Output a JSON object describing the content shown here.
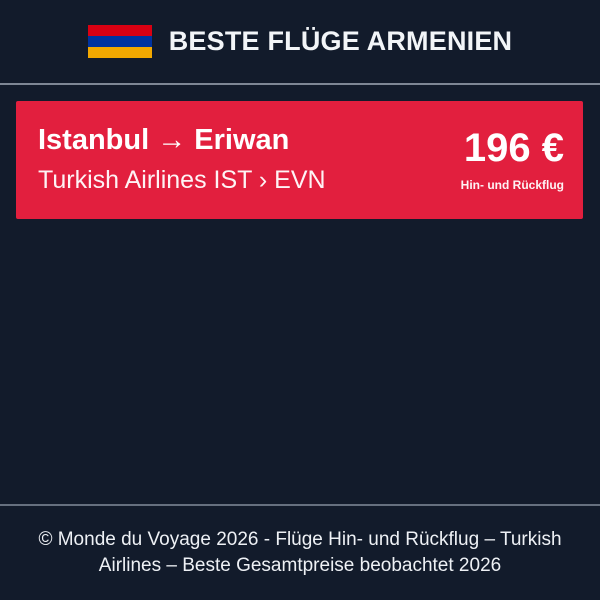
{
  "page": {
    "background": "#121b2b"
  },
  "header": {
    "title": "BESTE FLÜGE ARMENIEN",
    "flag": {
      "name": "armenia-flag",
      "colors": {
        "top": "#d90012",
        "middle": "#0033a0",
        "bottom": "#f2a800"
      }
    },
    "divider_color": "#7e8795"
  },
  "deal_card": {
    "bg": "#e21f3e",
    "route": "Istanbul → Eriwan",
    "airline_route": "Turkish Airlines IST › EVN",
    "price": "196 €",
    "price_note": "Hin- und Rückflug"
  },
  "footer": {
    "divider_color": "#66707f",
    "text": "© Monde du Voyage 2026 - Flüge Hin- und Rückflug – Turkish Airlines – Beste Gesamtpreise beobachtet 2026"
  }
}
